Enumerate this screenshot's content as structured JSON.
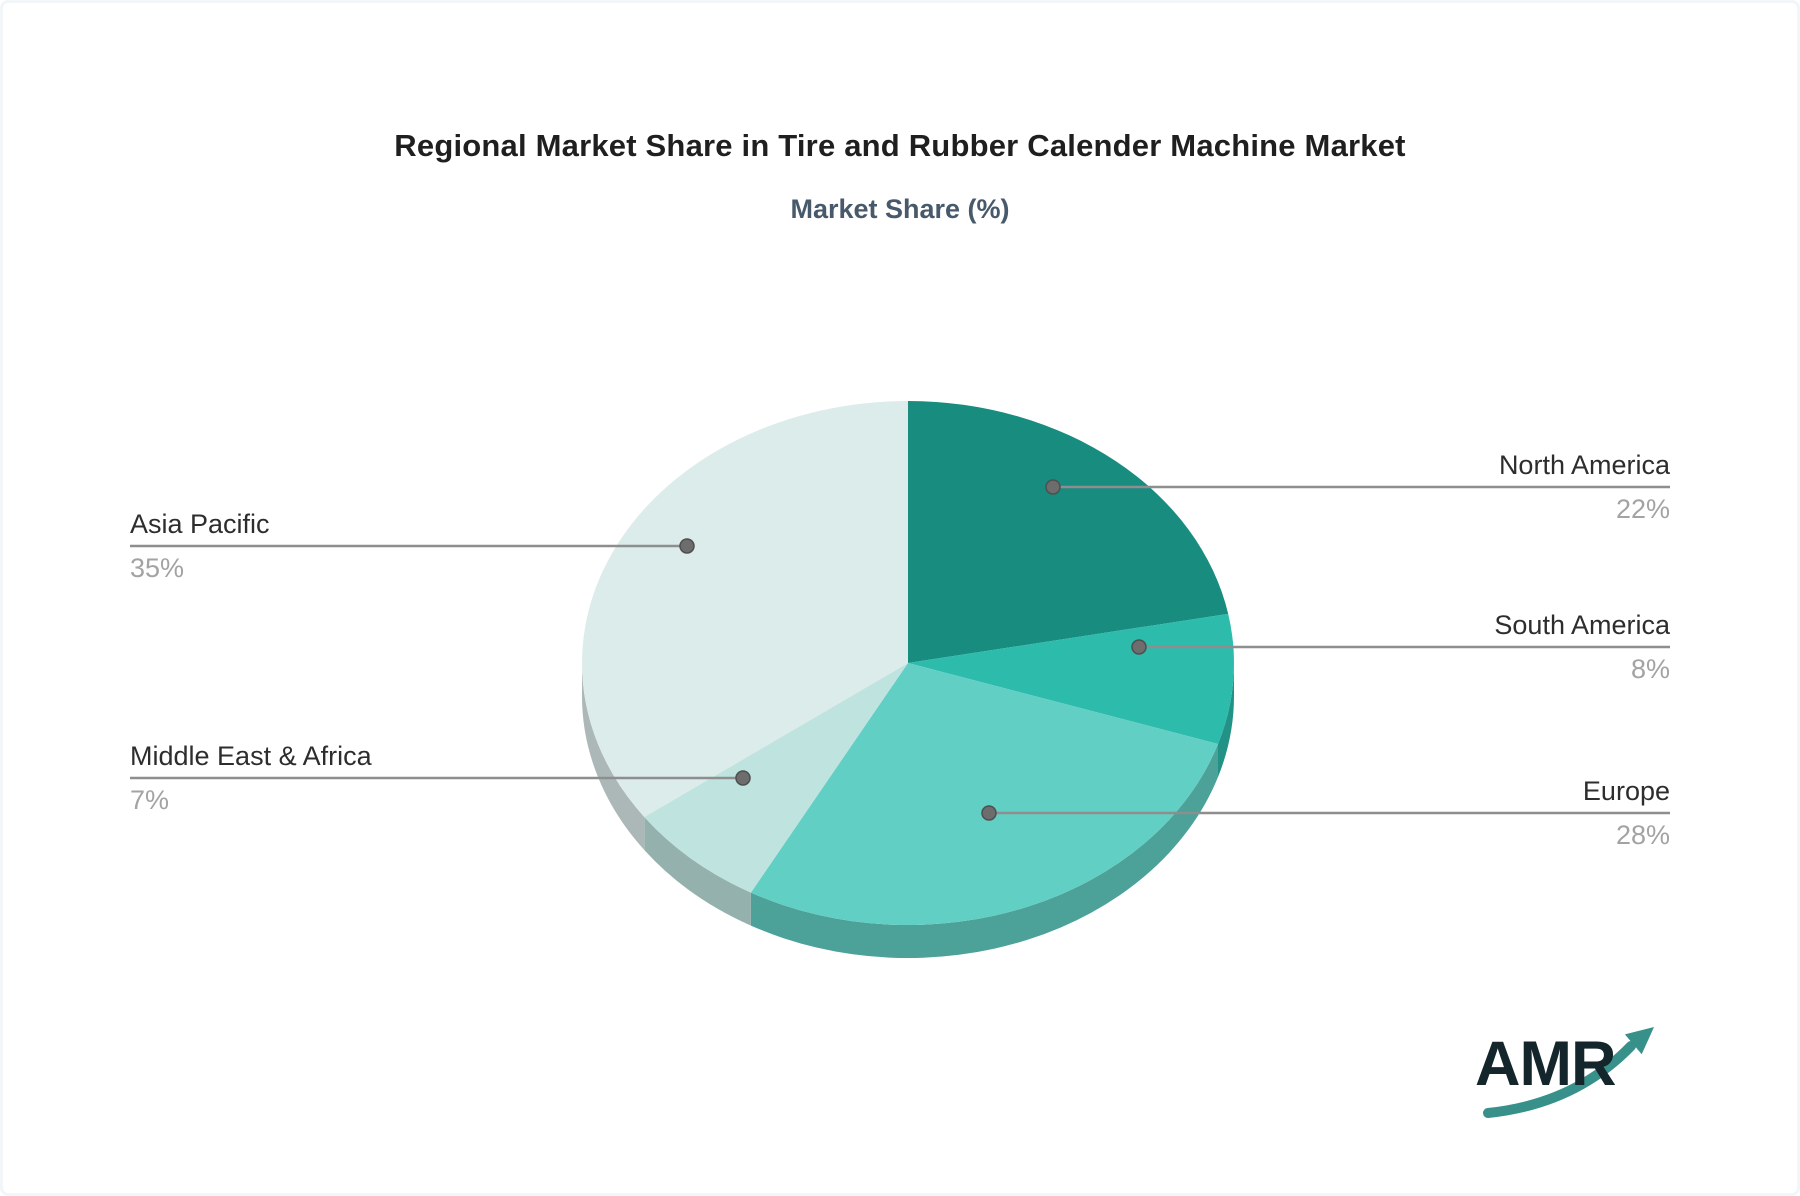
{
  "header": {
    "title": "Regional Market Share in Tire and Rubber Calender Machine Market",
    "subtitle": "Market Share (%)"
  },
  "chart_data": {
    "type": "pie",
    "title": "Regional Market Share in Tire and Rubber Calender Machine Market",
    "subtitle": "Market Share (%)",
    "unit": "%",
    "effect": "3d",
    "start_angle_deg": 0,
    "direction": "clockwise",
    "legend_position": "none",
    "labels_style": "leader-lines",
    "slices": [
      {
        "label": "North America",
        "value": 22,
        "value_label": "22%",
        "color": "#198c80",
        "side": "right"
      },
      {
        "label": "South America",
        "value": 8,
        "value_label": "8%",
        "color": "#2dbbac",
        "side": "right"
      },
      {
        "label": "Europe",
        "value": 28,
        "value_label": "28%",
        "color": "#62cfc4",
        "side": "right"
      },
      {
        "label": "Middle East & Africa",
        "value": 7,
        "value_label": "7%",
        "color": "#bfe3de",
        "side": "left"
      },
      {
        "label": "Asia Pacific",
        "value": 35,
        "value_label": "35%",
        "color": "#dcecea",
        "side": "left"
      }
    ],
    "colors": {
      "label_text": "#2d2d2d",
      "value_text": "#a3a3a3",
      "leader_line": "#8e8e8e",
      "leader_dot": "#6d6d6d",
      "title_text": "#1f1f1f",
      "subtitle_text": "#47596a"
    }
  },
  "logo": {
    "text": "AMR",
    "text_color": "#14262c",
    "arrow_color": "#37908a"
  }
}
